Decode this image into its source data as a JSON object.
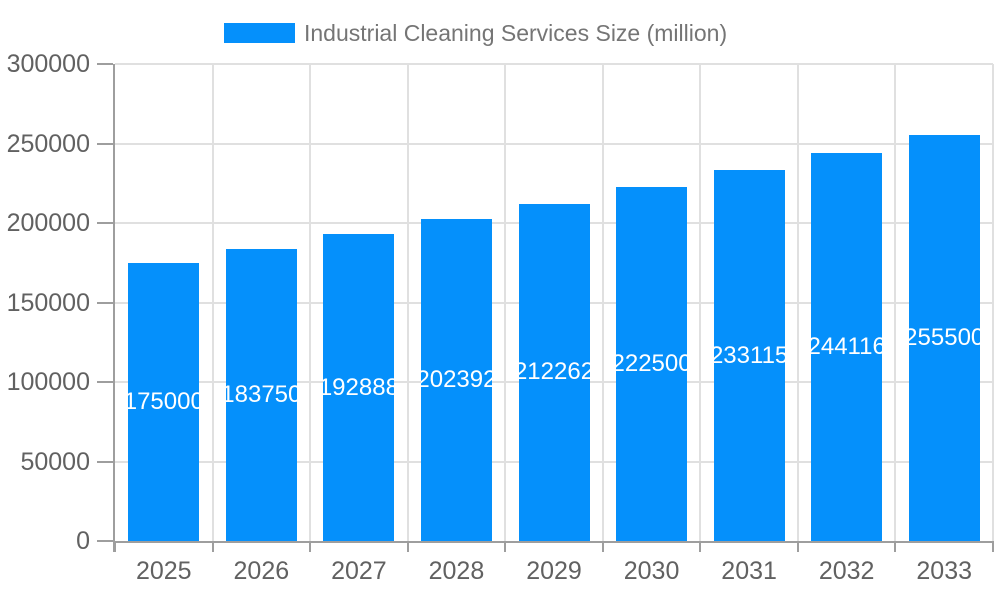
{
  "legend": {
    "label": "Industrial Cleaning Services Size (million)"
  },
  "colors": {
    "bar": "#0590fb",
    "grid": "#e0e0e0",
    "axis": "#9e9e9e",
    "tick_label": "#616161",
    "legend_text": "#757575",
    "bar_label": "#ffffff",
    "background": "#ffffff"
  },
  "chart_data": {
    "type": "bar",
    "title": "Industrial Cleaning Services Size (million)",
    "categories": [
      "2025",
      "2026",
      "2027",
      "2028",
      "2029",
      "2030",
      "2031",
      "2032",
      "2033"
    ],
    "values": [
      175000,
      183750,
      192888,
      202392,
      212262,
      222500,
      233115,
      244116,
      255500
    ],
    "bar_labels": [
      "175000",
      "183750",
      "192888",
      "202392",
      "212262",
      "222500",
      "233115",
      "244116",
      "255500"
    ],
    "xlabel": "",
    "ylabel": "",
    "y_ticks": [
      0,
      50000,
      100000,
      150000,
      200000,
      250000,
      300000
    ],
    "y_tick_labels": [
      "0",
      "50000",
      "100000",
      "150000",
      "200000",
      "250000",
      "300000"
    ],
    "ylim": [
      0,
      300000
    ],
    "grid": true,
    "legend_position": "top",
    "bar_value_labels_inside": true
  }
}
